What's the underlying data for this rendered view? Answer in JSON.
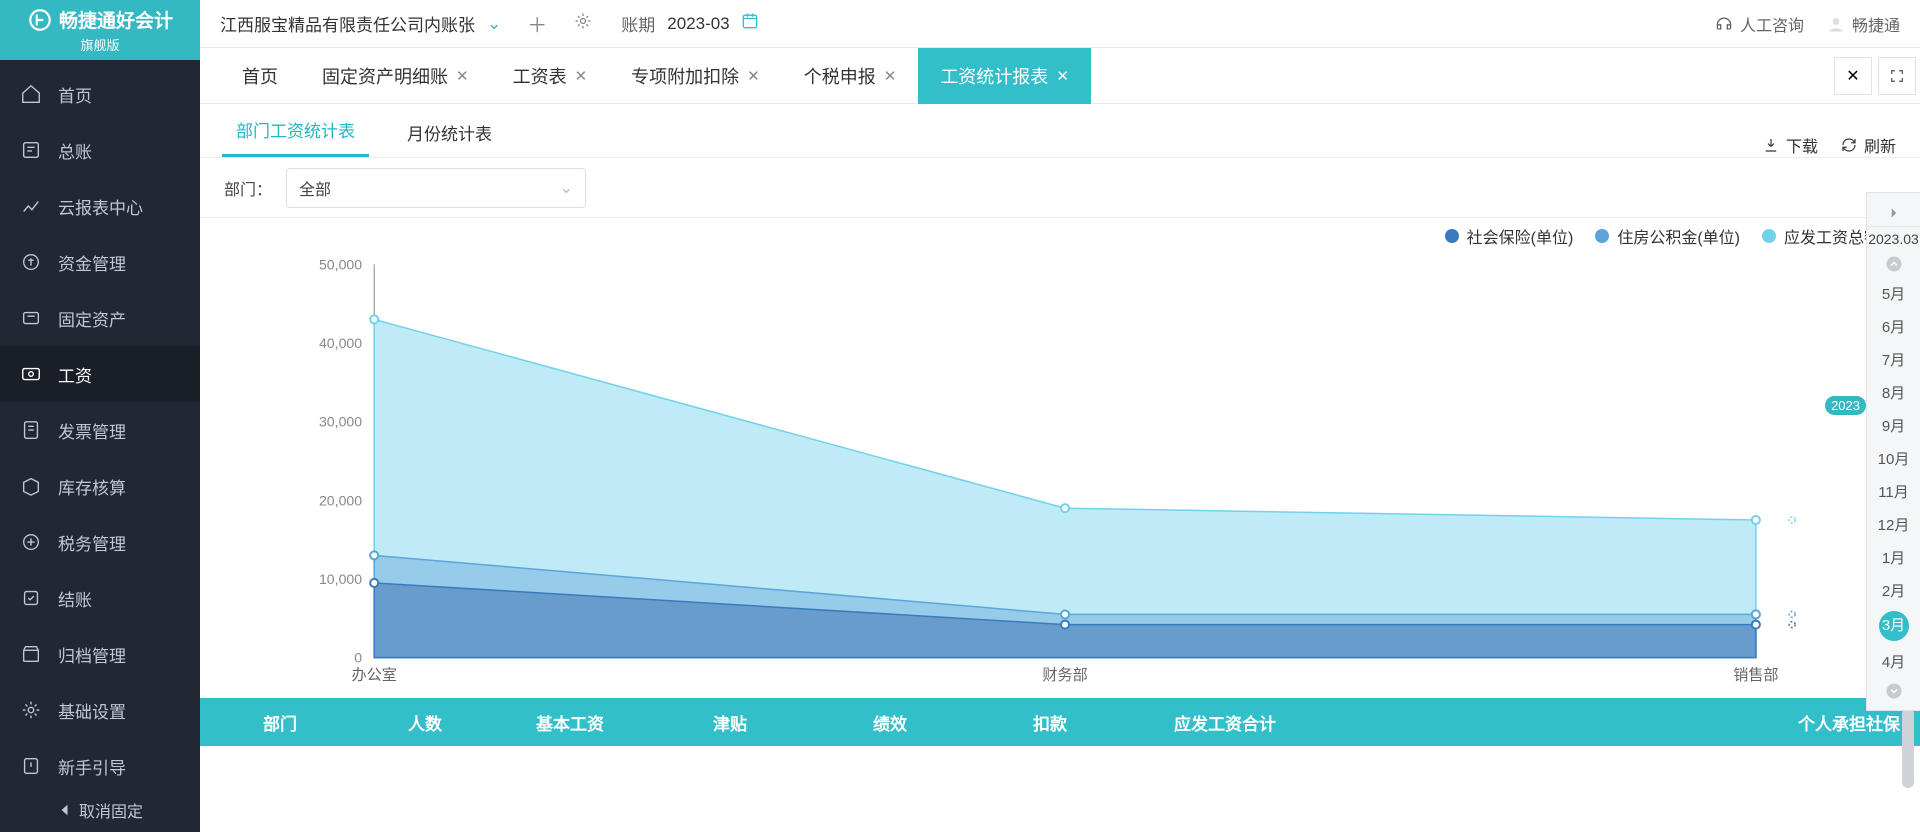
{
  "logo": {
    "main": "畅捷通好会计",
    "sub": "旗舰版"
  },
  "nav": [
    {
      "label": "首页"
    },
    {
      "label": "总账"
    },
    {
      "label": "云报表中心"
    },
    {
      "label": "资金管理"
    },
    {
      "label": "固定资产"
    },
    {
      "label": "工资"
    },
    {
      "label": "发票管理"
    },
    {
      "label": "库存核算"
    },
    {
      "label": "税务管理"
    },
    {
      "label": "结账"
    },
    {
      "label": "归档管理"
    },
    {
      "label": "基础设置"
    },
    {
      "label": "新手引导"
    }
  ],
  "nav_active_index": 5,
  "sidebar_footer": "取消固定",
  "topbar": {
    "company": "江西服宝精品有限责任公司内账张",
    "period_label": "账期",
    "period_value": "2023-03",
    "consult": "人工咨询",
    "user": "畅捷通"
  },
  "tabs": {
    "items": [
      {
        "label": "首页",
        "closable": false
      },
      {
        "label": "固定资产明细账",
        "closable": true
      },
      {
        "label": "工资表",
        "closable": true
      },
      {
        "label": "专项附加扣除",
        "closable": true
      },
      {
        "label": "个税申报",
        "closable": true
      },
      {
        "label": "工资统计报表",
        "closable": true
      }
    ],
    "active_index": 5
  },
  "sub_tabs": {
    "items": [
      "部门工资统计表",
      "月份统计表"
    ],
    "active_index": 0,
    "actions": {
      "download": "下载",
      "refresh": "刷新"
    }
  },
  "filter": {
    "label": "部门：",
    "value": "全部"
  },
  "chart": {
    "type": "area",
    "background": "#ffffff",
    "y_axis": {
      "min": 0,
      "max": 50000,
      "step": 10000,
      "labels": [
        "0",
        "10,000",
        "20,000",
        "30,000",
        "40,000",
        "50,000"
      ]
    },
    "x_categories": [
      "办公室",
      "财务部",
      "销售部"
    ],
    "series": [
      {
        "name": "社会保险(单位)",
        "color": "#3a7bbf",
        "fill": "#5b90c5",
        "fill_opacity": 0.8,
        "values": [
          9500,
          4200,
          4200
        ]
      },
      {
        "name": "住房公积金(单位)",
        "color": "#5ca5da",
        "fill": "#7cb6e0",
        "fill_opacity": 0.6,
        "values": [
          13000,
          5500,
          5500
        ]
      },
      {
        "name": "应发工资总额",
        "color": "#72d1eb",
        "fill": "#8bdaf0",
        "fill_opacity": 0.55,
        "values": [
          43000,
          19000,
          17500
        ]
      }
    ],
    "legend_colors": [
      "#3a7bbf",
      "#5ca5da",
      "#72d1eb"
    ],
    "marker_radius": 4
  },
  "table_headers": [
    "部门",
    "人数",
    "基本工资",
    "津贴",
    "绩效",
    "扣款",
    "应发工资合计",
    "个人承担社保"
  ],
  "table_header_extra": "个人承担社保",
  "month_rail": {
    "year_top": "2023.03",
    "badge": "2023",
    "months": [
      "5月",
      "6月",
      "7月",
      "8月",
      "9月",
      "10月",
      "11月",
      "12月",
      "1月",
      "2月",
      "3月",
      "4月"
    ],
    "selected_index": 10
  }
}
